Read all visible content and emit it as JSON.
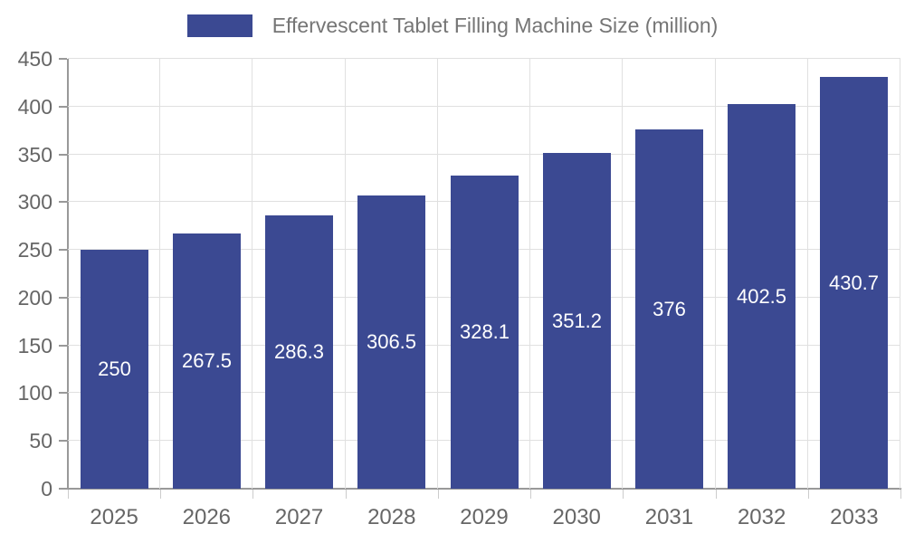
{
  "chart_data": {
    "type": "bar",
    "title": "Effervescent Tablet Filling Machine Size (million)",
    "categories": [
      "2025",
      "2026",
      "2027",
      "2028",
      "2029",
      "2030",
      "2031",
      "2032",
      "2033"
    ],
    "values": [
      250,
      267.5,
      286.3,
      306.5,
      328.1,
      351.2,
      376,
      402.5,
      430.7
    ],
    "xlabel": "",
    "ylabel": "",
    "ylim": [
      0,
      450
    ],
    "ytick_interval": 50,
    "ytick_labels": [
      "0",
      "50",
      "100",
      "150",
      "200",
      "250",
      "300",
      "350",
      "400",
      "450"
    ],
    "grid": true,
    "legend_position": "top",
    "value_labels_visible": true,
    "colors": {
      "bar": "#3B4992",
      "grid": "#E0E0E0",
      "axis": "#999999",
      "x_tick": "#CCCCCC",
      "tick_text": "#666666",
      "legend_text": "#757575",
      "value_label_text": "#FFFFFF",
      "background": "#FFFFFF"
    }
  }
}
